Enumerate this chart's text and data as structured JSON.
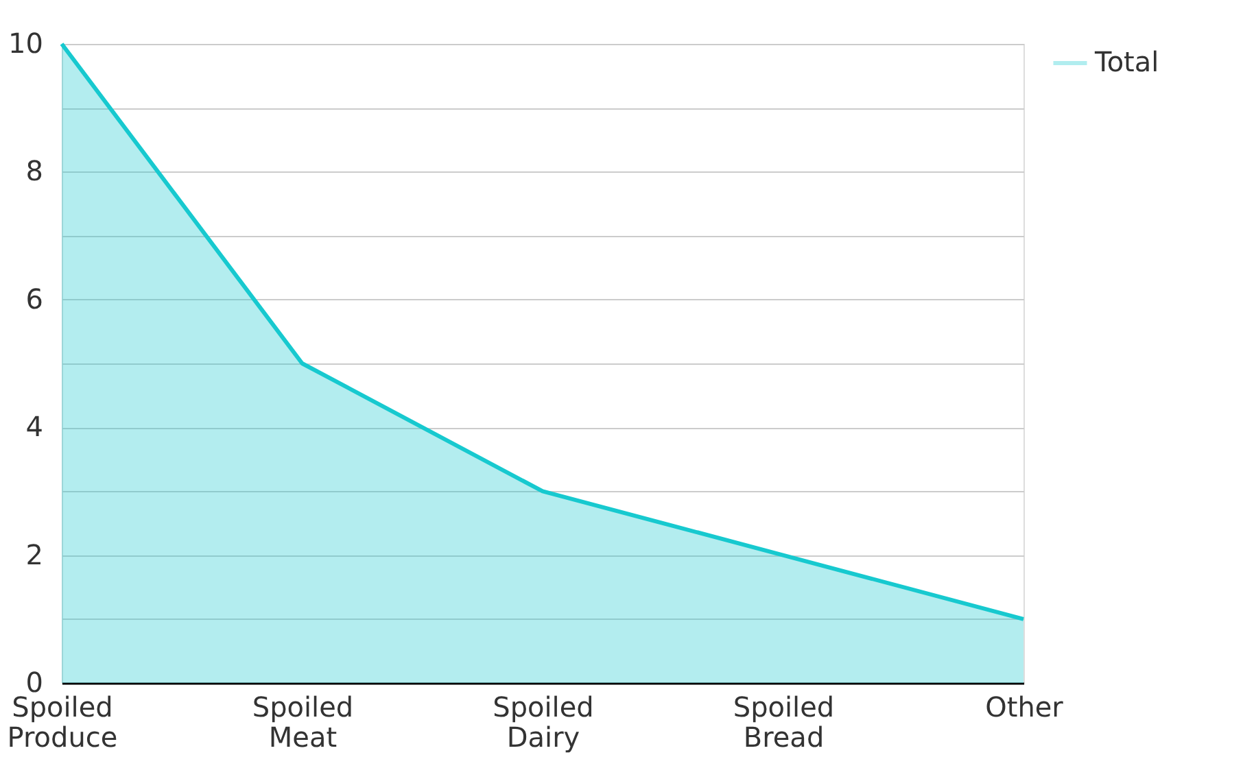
{
  "chart_data": {
    "type": "area",
    "categories": [
      "Spoiled Produce",
      "Spoiled Meat",
      "Spoiled Dairy",
      "Spoiled Bread",
      "Other"
    ],
    "series": [
      {
        "name": "Total",
        "color": "#17c9cf",
        "values": [
          10,
          5,
          3,
          2,
          1
        ]
      }
    ],
    "ylim": [
      0,
      10
    ],
    "yticks": [
      0,
      {
        "value": 1,
        "label": null
      },
      2,
      {
        "value": 3,
        "label": null
      },
      4,
      {
        "value": 5,
        "label": null
      },
      6,
      {
        "value": 7,
        "label": null
      },
      8,
      {
        "value": 9,
        "label": null
      },
      10
    ],
    "grid": "y",
    "legend": "top right"
  }
}
